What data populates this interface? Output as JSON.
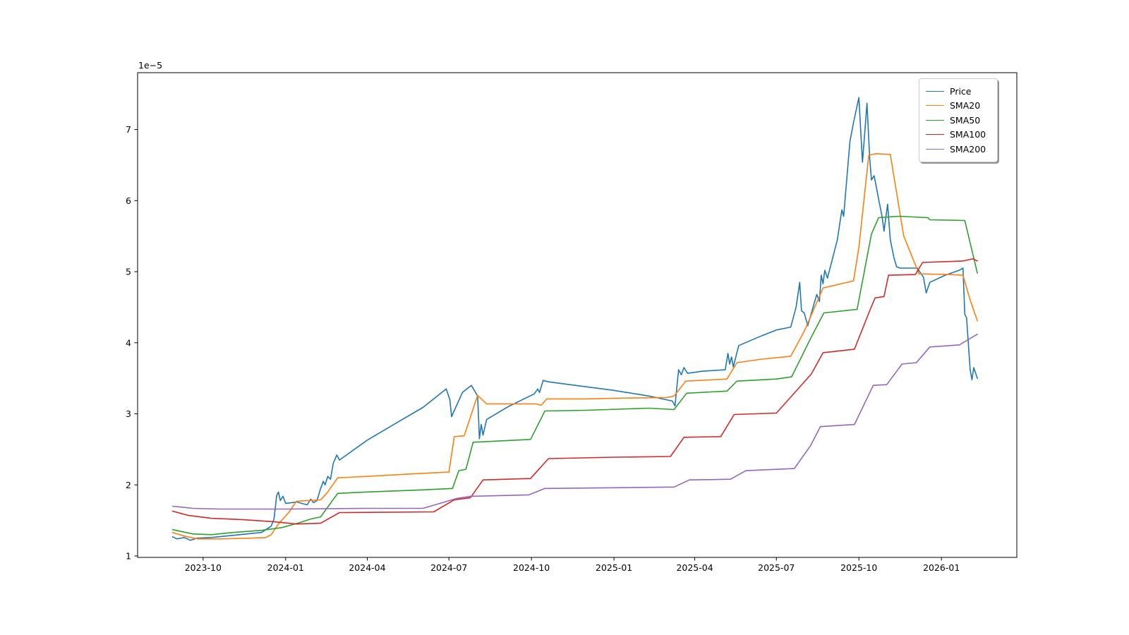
{
  "chart_data": {
    "type": "line",
    "title": "",
    "y_offset_text": "1e−5",
    "unit_multiplier": "1e-5",
    "grid": false,
    "legend": {
      "position": "upper-right",
      "entries": [
        "Price",
        "SMA20",
        "SMA50",
        "SMA100",
        "SMA200"
      ]
    },
    "x_axis": {
      "domain": [
        "2023-07-20",
        "2026-03-26"
      ],
      "ticks": [
        {
          "label": "2023-10",
          "date": "2023-10-01"
        },
        {
          "label": "2024-01",
          "date": "2024-01-01"
        },
        {
          "label": "2024-04",
          "date": "2024-04-01"
        },
        {
          "label": "2024-07",
          "date": "2024-07-01"
        },
        {
          "label": "2024-10",
          "date": "2024-10-01"
        },
        {
          "label": "2025-01",
          "date": "2025-01-01"
        },
        {
          "label": "2025-04",
          "date": "2025-04-01"
        },
        {
          "label": "2025-07",
          "date": "2025-07-01"
        },
        {
          "label": "2025-10",
          "date": "2025-10-01"
        },
        {
          "label": "2026-01",
          "date": "2026-01-01"
        }
      ]
    },
    "y_axis": {
      "domain": [
        0.98,
        7.8
      ],
      "ticks": [
        "1",
        "2",
        "3",
        "4",
        "5",
        "6",
        "7"
      ],
      "tick_values": [
        1,
        2,
        3,
        4,
        5,
        6,
        7
      ]
    },
    "series": [
      {
        "name": "Price",
        "color": "#1f77b4",
        "data": [
          [
            "2023-08-28",
            1.27
          ],
          [
            "2023-09-02",
            1.24
          ],
          [
            "2023-09-10",
            1.26
          ],
          [
            "2023-09-17",
            1.22
          ],
          [
            "2023-09-24",
            1.25
          ],
          [
            "2023-10-10",
            1.26
          ],
          [
            "2023-11-03",
            1.29
          ],
          [
            "2023-12-05",
            1.33
          ],
          [
            "2023-12-16",
            1.42
          ],
          [
            "2023-12-19",
            1.52
          ],
          [
            "2023-12-22",
            1.85
          ],
          [
            "2023-12-24",
            1.9
          ],
          [
            "2023-12-26",
            1.78
          ],
          [
            "2023-12-29",
            1.84
          ],
          [
            "2024-01-01",
            1.74
          ],
          [
            "2024-01-08",
            1.75
          ],
          [
            "2024-01-13",
            1.76
          ],
          [
            "2024-01-25",
            1.72
          ],
          [
            "2024-01-29",
            1.8
          ],
          [
            "2024-02-01",
            1.75
          ],
          [
            "2024-02-05",
            1.78
          ],
          [
            "2024-02-09",
            1.95
          ],
          [
            "2024-02-12",
            2.05
          ],
          [
            "2024-02-14",
            2.0
          ],
          [
            "2024-02-17",
            2.12
          ],
          [
            "2024-02-20",
            2.08
          ],
          [
            "2024-02-23",
            2.3
          ],
          [
            "2024-02-27",
            2.42
          ],
          [
            "2024-03-01",
            2.35
          ],
          [
            "2024-04-01",
            2.63
          ],
          [
            "2024-05-02",
            2.86
          ],
          [
            "2024-06-02",
            3.09
          ],
          [
            "2024-06-28",
            3.35
          ],
          [
            "2024-07-02",
            3.2
          ],
          [
            "2024-07-04",
            2.96
          ],
          [
            "2024-07-16",
            3.3
          ],
          [
            "2024-07-26",
            3.4
          ],
          [
            "2024-08-02",
            3.25
          ],
          [
            "2024-08-04",
            2.65
          ],
          [
            "2024-08-06",
            2.85
          ],
          [
            "2024-08-08",
            2.7
          ],
          [
            "2024-08-12",
            2.92
          ],
          [
            "2024-09-05",
            3.1
          ],
          [
            "2024-10-04",
            3.28
          ],
          [
            "2024-10-08",
            3.35
          ],
          [
            "2024-10-10",
            3.3
          ],
          [
            "2024-10-14",
            3.47
          ],
          [
            "2024-10-20",
            3.45
          ],
          [
            "2024-12-01",
            3.38
          ],
          [
            "2025-01-01",
            3.33
          ],
          [
            "2025-02-09",
            3.25
          ],
          [
            "2025-03-07",
            3.18
          ],
          [
            "2025-03-10",
            3.11
          ],
          [
            "2025-03-14",
            3.62
          ],
          [
            "2025-03-17",
            3.55
          ],
          [
            "2025-03-20",
            3.65
          ],
          [
            "2025-03-24",
            3.57
          ],
          [
            "2025-04-10",
            3.6
          ],
          [
            "2025-05-05",
            3.62
          ],
          [
            "2025-05-08",
            3.85
          ],
          [
            "2025-05-10",
            3.7
          ],
          [
            "2025-05-12",
            3.8
          ],
          [
            "2025-05-14",
            3.66
          ],
          [
            "2025-05-20",
            3.96
          ],
          [
            "2025-06-15",
            4.1
          ],
          [
            "2025-07-01",
            4.18
          ],
          [
            "2025-07-17",
            4.22
          ],
          [
            "2025-07-23",
            4.5
          ],
          [
            "2025-07-27",
            4.85
          ],
          [
            "2025-07-29",
            4.45
          ],
          [
            "2025-08-01",
            4.42
          ],
          [
            "2025-08-05",
            4.24
          ],
          [
            "2025-08-12",
            4.55
          ],
          [
            "2025-08-15",
            4.68
          ],
          [
            "2025-08-18",
            4.58
          ],
          [
            "2025-08-20",
            4.95
          ],
          [
            "2025-08-22",
            4.83
          ],
          [
            "2025-08-24",
            5.02
          ],
          [
            "2025-08-27",
            4.91
          ],
          [
            "2025-09-07",
            5.45
          ],
          [
            "2025-09-12",
            5.87
          ],
          [
            "2025-09-14",
            5.78
          ],
          [
            "2025-09-21",
            6.83
          ],
          [
            "2025-09-25",
            7.1
          ],
          [
            "2025-10-01",
            7.45
          ],
          [
            "2025-10-05",
            6.54
          ],
          [
            "2025-10-10",
            7.37
          ],
          [
            "2025-10-13",
            6.6
          ],
          [
            "2025-10-15",
            6.29
          ],
          [
            "2025-10-18",
            6.35
          ],
          [
            "2025-10-27",
            5.76
          ],
          [
            "2025-10-29",
            5.57
          ],
          [
            "2025-11-02",
            5.95
          ],
          [
            "2025-11-05",
            5.45
          ],
          [
            "2025-11-09",
            5.2
          ],
          [
            "2025-11-12",
            5.07
          ],
          [
            "2025-11-16",
            5.05
          ],
          [
            "2025-12-05",
            5.05
          ],
          [
            "2025-12-12",
            4.92
          ],
          [
            "2025-12-15",
            4.7
          ],
          [
            "2025-12-19",
            4.85
          ],
          [
            "2026-01-05",
            4.95
          ],
          [
            "2026-01-21",
            5.02
          ],
          [
            "2026-01-25",
            5.05
          ],
          [
            "2026-01-27",
            4.4
          ],
          [
            "2026-01-29",
            4.35
          ],
          [
            "2026-02-02",
            3.62
          ],
          [
            "2026-02-04",
            3.48
          ],
          [
            "2026-02-06",
            3.65
          ],
          [
            "2026-02-10",
            3.5
          ]
        ]
      },
      {
        "name": "SMA20",
        "color": "#ff7f0e",
        "data": [
          [
            "2023-08-28",
            1.33
          ],
          [
            "2023-09-10",
            1.28
          ],
          [
            "2023-09-25",
            1.24
          ],
          [
            "2023-10-20",
            1.24
          ],
          [
            "2023-11-20",
            1.25
          ],
          [
            "2023-12-10",
            1.26
          ],
          [
            "2023-12-16",
            1.3
          ],
          [
            "2023-12-24",
            1.45
          ],
          [
            "2024-01-05",
            1.62
          ],
          [
            "2024-01-13",
            1.77
          ],
          [
            "2024-02-09",
            1.79
          ],
          [
            "2024-02-17",
            1.9
          ],
          [
            "2024-02-28",
            2.1
          ],
          [
            "2024-04-01",
            2.12
          ],
          [
            "2024-05-15",
            2.15
          ],
          [
            "2024-07-01",
            2.18
          ],
          [
            "2024-07-07",
            2.68
          ],
          [
            "2024-07-18",
            2.69
          ],
          [
            "2024-08-02",
            3.26
          ],
          [
            "2024-08-12",
            3.14
          ],
          [
            "2024-10-06",
            3.14
          ],
          [
            "2024-10-12",
            3.12
          ],
          [
            "2024-10-18",
            3.21
          ],
          [
            "2024-12-01",
            3.21
          ],
          [
            "2025-01-01",
            3.22
          ],
          [
            "2025-03-01",
            3.23
          ],
          [
            "2025-03-09",
            3.25
          ],
          [
            "2025-03-22",
            3.46
          ],
          [
            "2025-05-07",
            3.49
          ],
          [
            "2025-05-18",
            3.72
          ],
          [
            "2025-06-15",
            3.77
          ],
          [
            "2025-07-17",
            3.81
          ],
          [
            "2025-08-01",
            4.16
          ],
          [
            "2025-08-22",
            4.77
          ],
          [
            "2025-09-25",
            4.87
          ],
          [
            "2025-10-01",
            5.34
          ],
          [
            "2025-10-12",
            6.64
          ],
          [
            "2025-10-20",
            6.66
          ],
          [
            "2025-11-05",
            6.65
          ],
          [
            "2025-11-20",
            5.5
          ],
          [
            "2025-12-07",
            4.97
          ],
          [
            "2026-01-10",
            4.96
          ],
          [
            "2026-01-25",
            4.95
          ],
          [
            "2026-02-02",
            4.6
          ],
          [
            "2026-02-10",
            4.31
          ]
        ]
      },
      {
        "name": "SMA50",
        "color": "#2ca02c",
        "data": [
          [
            "2023-08-28",
            1.37
          ],
          [
            "2023-09-20",
            1.31
          ],
          [
            "2023-10-10",
            1.3
          ],
          [
            "2023-11-03",
            1.33
          ],
          [
            "2023-12-05",
            1.36
          ],
          [
            "2023-12-28",
            1.4
          ],
          [
            "2024-01-17",
            1.47
          ],
          [
            "2024-01-29",
            1.52
          ],
          [
            "2024-02-09",
            1.55
          ],
          [
            "2024-02-28",
            1.88
          ],
          [
            "2024-04-01",
            1.9
          ],
          [
            "2024-06-02",
            1.93
          ],
          [
            "2024-07-05",
            1.95
          ],
          [
            "2024-07-12",
            2.2
          ],
          [
            "2024-07-20",
            2.22
          ],
          [
            "2024-07-28",
            2.6
          ],
          [
            "2024-09-30",
            2.64
          ],
          [
            "2024-10-16",
            3.04
          ],
          [
            "2024-12-01",
            3.05
          ],
          [
            "2025-02-09",
            3.08
          ],
          [
            "2025-03-09",
            3.06
          ],
          [
            "2025-03-23",
            3.29
          ],
          [
            "2025-05-07",
            3.32
          ],
          [
            "2025-05-18",
            3.46
          ],
          [
            "2025-07-01",
            3.49
          ],
          [
            "2025-07-18",
            3.52
          ],
          [
            "2025-08-09",
            4.08
          ],
          [
            "2025-08-23",
            4.42
          ],
          [
            "2025-09-29",
            4.47
          ],
          [
            "2025-10-15",
            5.53
          ],
          [
            "2025-10-23",
            5.76
          ],
          [
            "2025-11-15",
            5.78
          ],
          [
            "2025-12-17",
            5.76
          ],
          [
            "2025-12-19",
            5.73
          ],
          [
            "2026-01-27",
            5.72
          ],
          [
            "2026-02-10",
            4.98
          ]
        ]
      },
      {
        "name": "SMA100",
        "color": "#d62728",
        "data": [
          [
            "2023-08-28",
            1.63
          ],
          [
            "2023-09-15",
            1.57
          ],
          [
            "2023-10-10",
            1.53
          ],
          [
            "2023-11-15",
            1.51
          ],
          [
            "2023-12-20",
            1.48
          ],
          [
            "2024-01-13",
            1.45
          ],
          [
            "2024-02-09",
            1.46
          ],
          [
            "2024-03-01",
            1.61
          ],
          [
            "2024-06-14",
            1.62
          ],
          [
            "2024-07-07",
            1.79
          ],
          [
            "2024-07-25",
            1.82
          ],
          [
            "2024-08-08",
            2.07
          ],
          [
            "2024-09-30",
            2.09
          ],
          [
            "2024-10-20",
            2.37
          ],
          [
            "2025-01-01",
            2.39
          ],
          [
            "2025-03-05",
            2.4
          ],
          [
            "2025-03-20",
            2.67
          ],
          [
            "2025-04-30",
            2.68
          ],
          [
            "2025-05-15",
            2.99
          ],
          [
            "2025-07-01",
            3.01
          ],
          [
            "2025-08-09",
            3.56
          ],
          [
            "2025-08-22",
            3.86
          ],
          [
            "2025-09-26",
            3.91
          ],
          [
            "2025-10-13",
            4.45
          ],
          [
            "2025-10-19",
            4.63
          ],
          [
            "2025-10-29",
            4.65
          ],
          [
            "2025-11-03",
            4.95
          ],
          [
            "2025-12-03",
            4.96
          ],
          [
            "2025-12-11",
            5.13
          ],
          [
            "2026-01-25",
            5.15
          ],
          [
            "2026-02-05",
            5.18
          ],
          [
            "2026-02-10",
            5.15
          ]
        ]
      },
      {
        "name": "SMA200",
        "color": "#9467bd",
        "data": [
          [
            "2023-08-28",
            1.7
          ],
          [
            "2023-09-20",
            1.67
          ],
          [
            "2023-10-20",
            1.66
          ],
          [
            "2024-01-01",
            1.66
          ],
          [
            "2024-04-01",
            1.67
          ],
          [
            "2024-06-02",
            1.67
          ],
          [
            "2024-07-10",
            1.81
          ],
          [
            "2024-07-25",
            1.84
          ],
          [
            "2024-09-28",
            1.86
          ],
          [
            "2024-10-16",
            1.95
          ],
          [
            "2025-01-01",
            1.96
          ],
          [
            "2025-03-09",
            1.97
          ],
          [
            "2025-03-26",
            2.07
          ],
          [
            "2025-05-11",
            2.08
          ],
          [
            "2025-05-28",
            2.2
          ],
          [
            "2025-07-21",
            2.23
          ],
          [
            "2025-08-08",
            2.55
          ],
          [
            "2025-08-19",
            2.82
          ],
          [
            "2025-09-26",
            2.85
          ],
          [
            "2025-10-17",
            3.4
          ],
          [
            "2025-11-01",
            3.41
          ],
          [
            "2025-11-18",
            3.7
          ],
          [
            "2025-12-04",
            3.72
          ],
          [
            "2025-12-19",
            3.94
          ],
          [
            "2026-01-21",
            3.97
          ],
          [
            "2026-02-10",
            4.12
          ]
        ]
      }
    ]
  }
}
